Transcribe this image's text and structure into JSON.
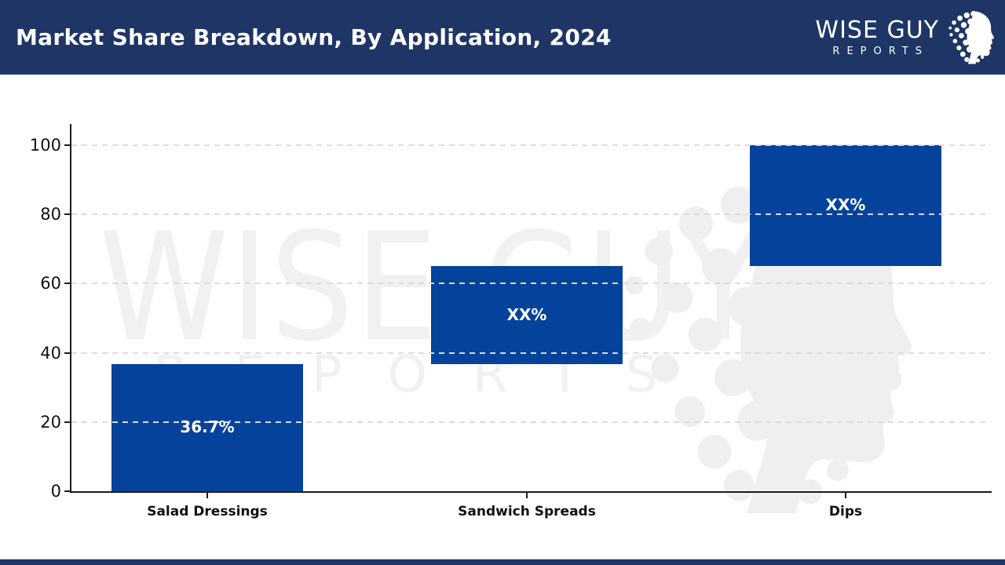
{
  "colors": {
    "navy": "#1e3566",
    "bar_blue": "#04429c",
    "grid": "#dcdcdc",
    "watermark": "#f1f1f1",
    "axis": "#1a1a1a"
  },
  "header": {
    "title": "Market Share Breakdown, By Application, 2024",
    "logo": {
      "wordmark": "WISE GUY",
      "subtext": "REPORTS"
    }
  },
  "watermark": {
    "wordmark": "WISE GUY",
    "subtext": "REPORTS"
  },
  "chart_data": {
    "type": "bar",
    "subtype": "floating-segment-waterfall",
    "title": "Market Share Breakdown, By Application, 2024",
    "categories": [
      "Salad Dressings",
      "Sandwich Spreads",
      "Dips"
    ],
    "bars": [
      {
        "category": "Salad Dressings",
        "start": 0,
        "end": 36.7,
        "label": "36.7%"
      },
      {
        "category": "Sandwich Spreads",
        "start": 36.7,
        "end": 65,
        "label": "XX%"
      },
      {
        "category": "Dips",
        "start": 65,
        "end": 100,
        "label": "XX%"
      }
    ],
    "ylim": [
      0,
      105
    ],
    "ytick_values": [
      0,
      20,
      40,
      60,
      80,
      100
    ],
    "ytick_labels": [
      "0",
      "20",
      "40",
      "60",
      "80",
      "100"
    ],
    "xlabel": "",
    "ylabel": "",
    "grid": "horizontal-dashed",
    "legend": "none",
    "bar_color": "#04429c",
    "value_label_color": "#ffffff"
  }
}
